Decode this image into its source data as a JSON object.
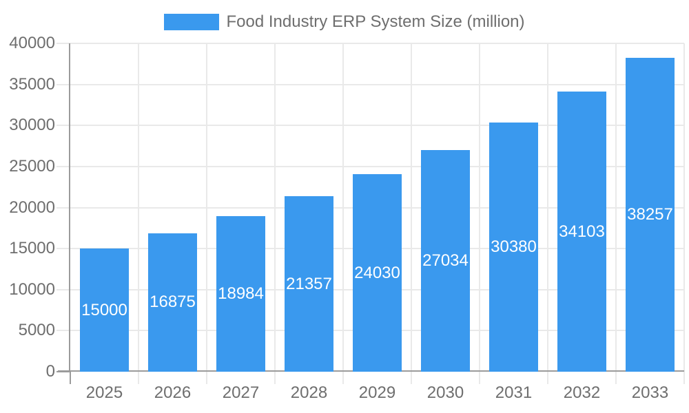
{
  "colors": {
    "bar": "#3a99ee",
    "axis_line": "#9b9b9b",
    "grid_line": "#e9e9e9",
    "tick_text": "#6e6e6e",
    "value_label_text": "#ffffff",
    "background": "#ffffff"
  },
  "chart_data": {
    "type": "bar",
    "title": "Food Industry ERP System Size (million)",
    "legend": {
      "position": "top",
      "entries": [
        {
          "label": "Food Industry ERP System Size (million)",
          "color": "#3a99ee"
        }
      ]
    },
    "categories": [
      "2025",
      "2026",
      "2027",
      "2028",
      "2029",
      "2030",
      "2031",
      "2032",
      "2033"
    ],
    "series": [
      {
        "name": "Food Industry ERP System Size (million)",
        "values": [
          15000,
          16875,
          18984,
          21357,
          24030,
          27034,
          30380,
          34103,
          38257
        ]
      }
    ],
    "xlabel": "",
    "ylabel": "",
    "ylim": [
      0,
      40000
    ],
    "ytick_step": 5000,
    "ytick_labels": [
      "0",
      "5000",
      "10000",
      "15000",
      "20000",
      "25000",
      "30000",
      "35000",
      "40000"
    ],
    "grid": true,
    "value_labels": "inside-center"
  }
}
